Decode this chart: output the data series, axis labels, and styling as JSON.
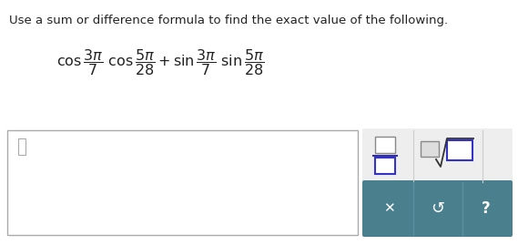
{
  "bg_color": "#ffffff",
  "white": "#ffffff",
  "dark_teal": "#4a7f8e",
  "light_gray": "#eeeeee",
  "text_color": "#222222",
  "blue_outline": "#3333cc",
  "gray_outline": "#888888",
  "instruction_text": "Use a sum or difference formula to find the exact value of the following.",
  "fig_width": 5.69,
  "fig_height": 2.69,
  "dpi": 100
}
